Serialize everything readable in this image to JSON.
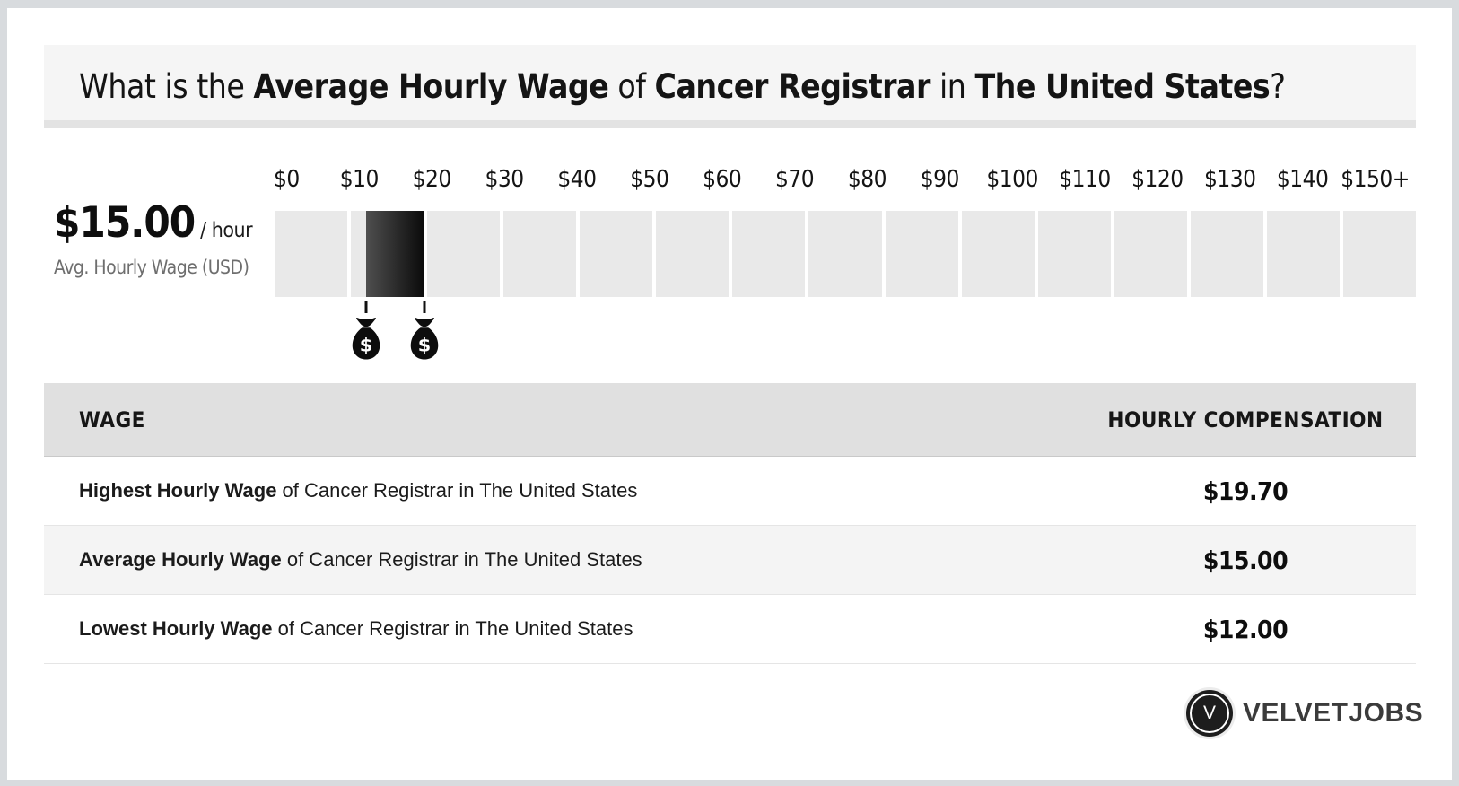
{
  "title": {
    "full_text": "What is the Average Hourly Wage of Cancer Registrar in The United States?",
    "parts": [
      {
        "text": "What is the ",
        "bold": false
      },
      {
        "text": "Average Hourly Wage",
        "bold": true
      },
      {
        "text": " of ",
        "bold": false
      },
      {
        "text": "Cancer Registrar",
        "bold": true
      },
      {
        "text": " in ",
        "bold": false
      },
      {
        "text": "The United States",
        "bold": true
      },
      {
        "text": "?",
        "bold": false
      }
    ]
  },
  "wage_summary": {
    "amount": "$15.00",
    "per": "/ hour",
    "caption": "Avg. Hourly Wage (USD)"
  },
  "chart_data": {
    "type": "bar",
    "subtype": "range-highlight-scale",
    "title": "Average Hourly Wage of Cancer Registrar in The United States",
    "x_tick_labels": [
      "$0",
      "$10",
      "$20",
      "$30",
      "$40",
      "$50",
      "$60",
      "$70",
      "$80",
      "$90",
      "$100",
      "$110",
      "$120",
      "$130",
      "$140",
      "$150+"
    ],
    "x_range": [
      0,
      150
    ],
    "segment_count": 15,
    "unit": "USD per hour",
    "highlighted_range": {
      "min": 12.0,
      "max": 19.7
    },
    "average": 15.0,
    "highest": 19.7,
    "lowest": 12.0,
    "markers": [
      {
        "value": 12.0,
        "icon": "money-bag"
      },
      {
        "value": 19.7,
        "icon": "money-bag"
      }
    ],
    "grid": false,
    "legend": false
  },
  "table": {
    "headers": [
      "WAGE",
      "HOURLY COMPENSATION"
    ],
    "rows": [
      {
        "label_bold": "Highest Hourly Wage",
        "label_rest": " of Cancer Registrar in The United States",
        "value": "$19.70"
      },
      {
        "label_bold": "Average Hourly Wage",
        "label_rest": " of Cancer Registrar in The United States",
        "value": "$15.00"
      },
      {
        "label_bold": "Lowest Hourly Wage",
        "label_rest": " of Cancer Registrar in The United States",
        "value": "$12.00"
      }
    ]
  },
  "branding": {
    "logo_letter": "V",
    "brand_name": "VELVETJOBS"
  },
  "colors": {
    "page_bg": "#d8dbde",
    "bar_gradient_start": "#4f4f4f",
    "bar_gradient_end": "#0a0a0a",
    "scale_segment": "#e9e9e9",
    "table_header_bg": "#e0e0e0",
    "row_alt_bg": "#f4f4f4",
    "title_block_bg": "#f5f5f5",
    "title_block_shadow": "#e3e3e3",
    "marker_color": "#101010",
    "brand_text": "#3b3b3b"
  }
}
